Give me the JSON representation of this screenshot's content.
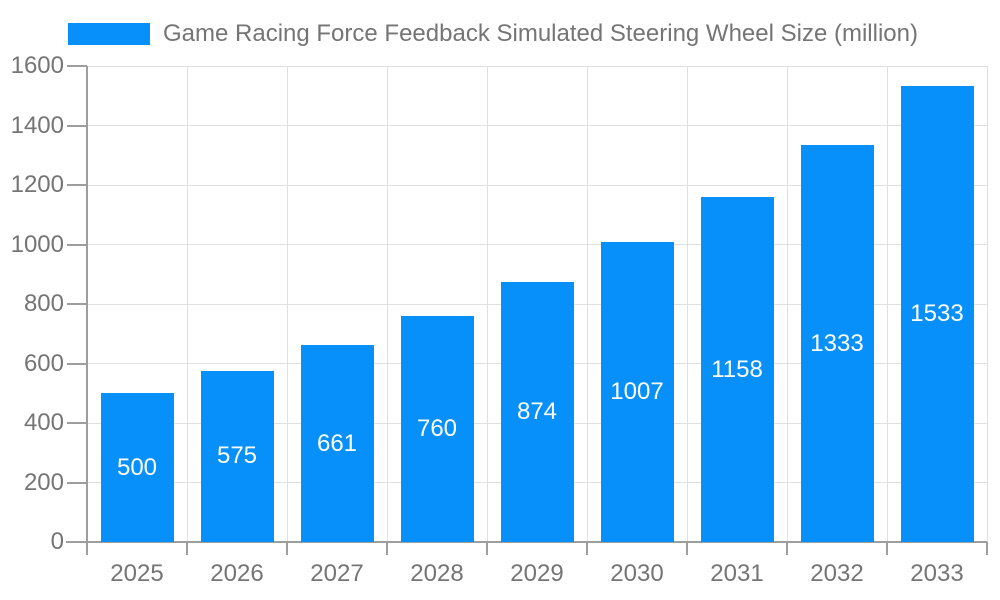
{
  "chart_data": {
    "type": "bar",
    "title": "Game Racing Force Feedback Simulated Steering Wheel Size (million)",
    "categories": [
      "2025",
      "2026",
      "2027",
      "2028",
      "2029",
      "2030",
      "2031",
      "2032",
      "2033"
    ],
    "values": [
      500,
      575,
      661,
      760,
      874,
      1007,
      1158,
      1333,
      1533
    ],
    "xlabel": "",
    "ylabel": "",
    "ylim": [
      0,
      1600
    ],
    "yticks": [
      0,
      200,
      400,
      600,
      800,
      1000,
      1200,
      1400,
      1600
    ],
    "grid": true,
    "legend_position": "top-left",
    "bar_color": "#0890FA",
    "bar_label_color": "#ffffff",
    "grid_color": "#e0e0e0",
    "axis_color": "#9e9e9e",
    "tick_text_color": "#757575",
    "background": "#ffffff"
  }
}
